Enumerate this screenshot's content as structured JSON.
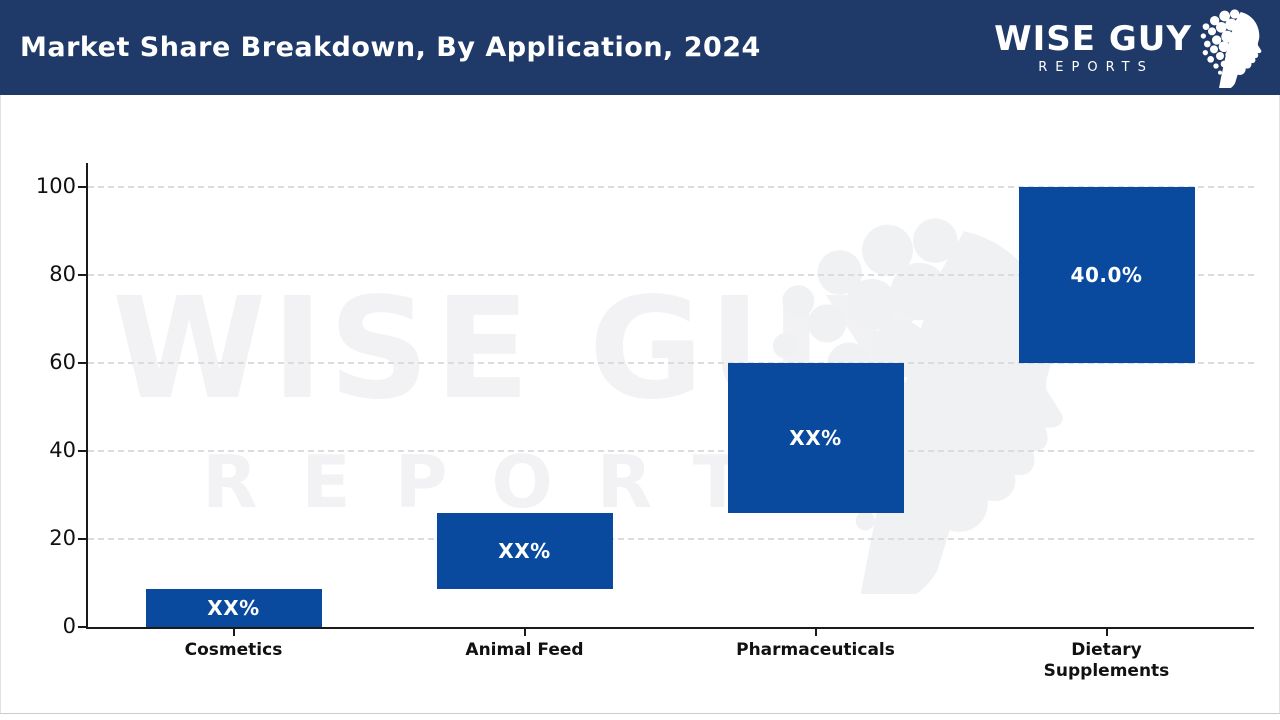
{
  "header": {
    "title": "Market Share Breakdown, By Application, 2024",
    "logo": {
      "line1": "WISE GUY",
      "line2": "REPORTS"
    }
  },
  "watermark": {
    "line1": "WISE GUY",
    "line2": "REPORTS"
  },
  "colors": {
    "header_bg": "#1f3a68",
    "bar": "#0a4a9e",
    "gridline": "#dcdcdc",
    "axis": "#1a1a1a",
    "bar_label": "#ffffff",
    "watermark": "#f2f2f4"
  },
  "chart_data": {
    "type": "bar",
    "subtype": "waterfall",
    "title": "Market Share Breakdown, By Application, 2024",
    "categories": [
      "Cosmetics",
      "Animal Feed",
      "Pharmaceuticals",
      "Dietary\nSupplements"
    ],
    "segments": [
      {
        "category": "Cosmetics",
        "start": 0,
        "end": 8.6,
        "label": "XX%"
      },
      {
        "category": "Animal Feed",
        "start": 8.6,
        "end": 26,
        "label": "XX%"
      },
      {
        "category": "Pharmaceuticals",
        "start": 26,
        "end": 60,
        "label": "XX%"
      },
      {
        "category": "Dietary Supplements",
        "start": 60,
        "end": 100,
        "label": "40.0%"
      }
    ],
    "yticks": [
      0,
      20,
      40,
      60,
      80,
      100
    ],
    "ylim": [
      0,
      105
    ],
    "xlabel": "",
    "ylabel": "",
    "grid": "horizontal-dashed",
    "legend": "none",
    "bar_color": "#0a4a9e"
  }
}
